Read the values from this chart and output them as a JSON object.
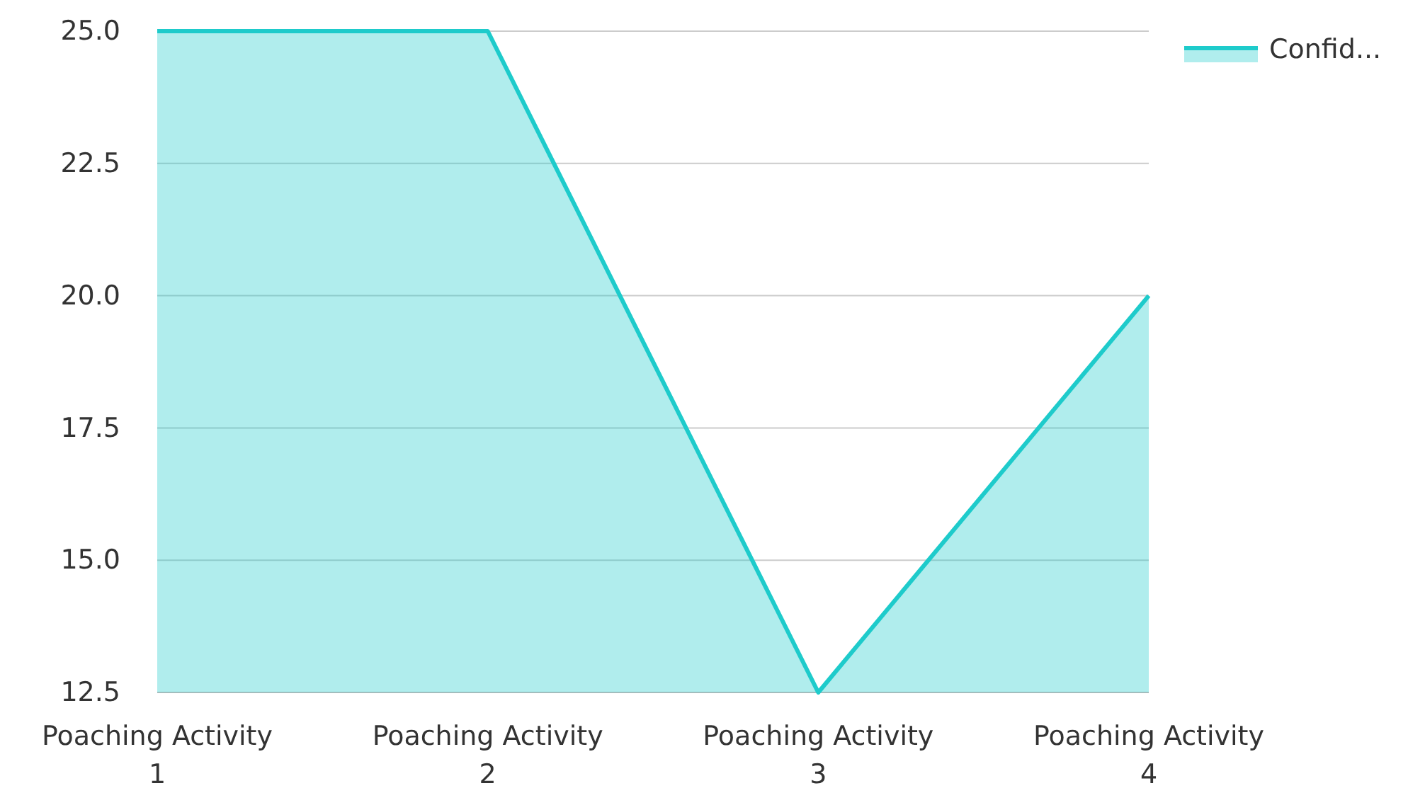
{
  "chart_data": {
    "type": "area",
    "categories": [
      "Poaching Activity 1",
      "Poaching Activity 2",
      "Poaching Activity 3",
      "Poaching Activity 4"
    ],
    "series": [
      {
        "name": "Confid...",
        "color": "#1ecbcb",
        "values": [
          25,
          25,
          12.5,
          20
        ]
      }
    ],
    "ylim": [
      12.5,
      25
    ],
    "yticks": [
      {
        "value": 12.5,
        "label": "12.5"
      },
      {
        "value": 15,
        "label": "15.0"
      },
      {
        "value": 17.5,
        "label": "17.5"
      },
      {
        "value": 20,
        "label": "20.0"
      },
      {
        "value": 22.5,
        "label": "22.5"
      },
      {
        "value": 25,
        "label": "25.0"
      }
    ],
    "grid": "y",
    "legend": "top right"
  }
}
